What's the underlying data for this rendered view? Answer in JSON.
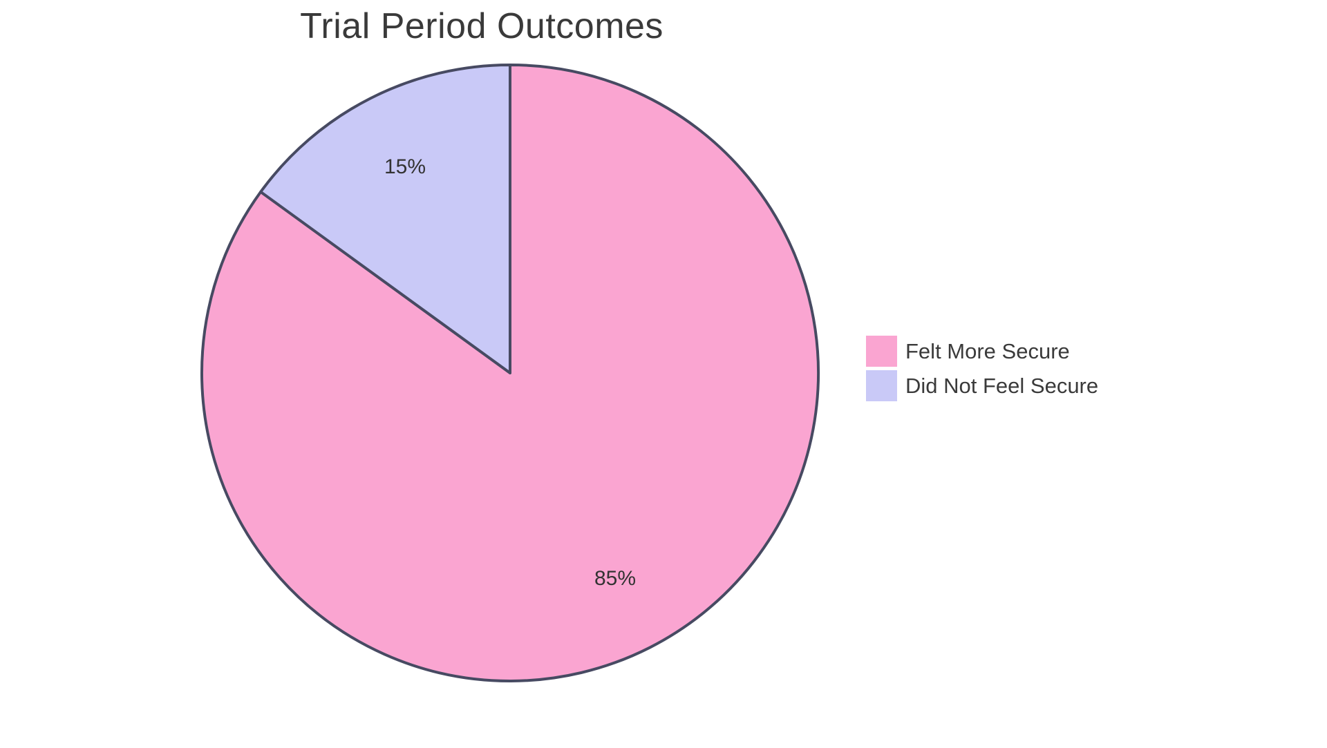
{
  "chart_data": {
    "type": "pie",
    "title": "Trial Period Outcomes",
    "slices": [
      {
        "label": "Felt More Secure",
        "value": 85,
        "percent_label": "85%",
        "color": "#FAA5D1"
      },
      {
        "label": "Did Not Feel Secure",
        "value": 15,
        "percent_label": "15%",
        "color": "#C9C9F7"
      }
    ],
    "start_angle_deg": -90,
    "direction": "clockwise",
    "stroke_color": "#474A62",
    "label_color": "#333333",
    "legend_position": "right",
    "grid": "off"
  }
}
